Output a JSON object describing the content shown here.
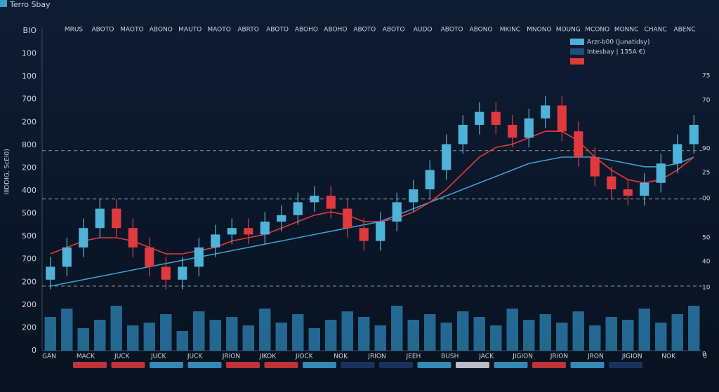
{
  "chart_data": {
    "type": "candlestick",
    "title": "Terro Sbay",
    "y_label": "IIIDDIG, ScEI0)",
    "left_axis_labels": [
      "BIO",
      "100",
      "100",
      "700",
      "200",
      "800",
      "200",
      "400",
      "500",
      "500",
      "700",
      "200",
      "200",
      "200",
      "0"
    ],
    "right_axis_labels": [
      "75",
      "70",
      "90",
      "25",
      "00",
      "50",
      "40",
      "10",
      "0"
    ],
    "top_labels": [
      "MRUS",
      "ABOTO",
      "MAOTO",
      "ABONO",
      "MAUTO",
      "MAOTO",
      "ABRTO",
      "ABOTO",
      "ABOHO",
      "ABOHO",
      "ABOTO",
      "ABOTO",
      "AUDO",
      "ABOTO",
      "ABONO",
      "MKINC",
      "MNONO",
      "MOUNG",
      "MCONO",
      "MONNC",
      "CHANC",
      "ABENC"
    ],
    "bottom_labels": [
      "GAN",
      "MACK",
      "JUCK",
      "JUCK",
      "JUCK",
      "JRION",
      "JIKOK",
      "JIOCK",
      "NOK",
      "JRION",
      "JEEH",
      "BUSH",
      "JACK",
      "JIGION",
      "JRION",
      "JRON",
      "JIGION",
      "NOK",
      "0"
    ],
    "legend": [
      {
        "name": "Arzr-b00 (Junatidsy)",
        "color": "#4fb3d9"
      },
      {
        "name": "Intesbay | 135A €)",
        "color": "#1f4f7a"
      },
      {
        "name": null,
        "color": "#e03a3e"
      }
    ],
    "ylim": [
      0,
      100
    ],
    "up_color": "#4fb3d9",
    "down_color": "#e03a3e",
    "open": [
      22,
      26,
      32,
      38,
      44,
      38,
      32,
      26,
      22,
      26,
      32,
      36,
      38,
      36,
      40,
      42,
      46,
      48,
      44,
      38,
      34,
      40,
      46,
      50,
      56,
      64,
      70,
      74,
      70,
      66,
      72,
      76,
      68,
      60,
      54,
      50,
      48,
      52,
      58,
      64
    ],
    "high": [
      29,
      35,
      41,
      47,
      47,
      41,
      35,
      29,
      29,
      35,
      39,
      41,
      41,
      43,
      45,
      49,
      51,
      51,
      47,
      41,
      43,
      49,
      53,
      59,
      67,
      73,
      77,
      77,
      73,
      75,
      79,
      79,
      71,
      63,
      57,
      53,
      55,
      61,
      67,
      73
    ],
    "low": [
      19,
      23,
      29,
      35,
      35,
      29,
      23,
      19,
      19,
      23,
      29,
      33,
      33,
      33,
      37,
      39,
      43,
      41,
      35,
      31,
      31,
      37,
      43,
      47,
      53,
      61,
      67,
      67,
      63,
      63,
      69,
      65,
      57,
      51,
      47,
      45,
      45,
      49,
      55,
      61
    ],
    "close": [
      26,
      32,
      38,
      44,
      38,
      32,
      26,
      22,
      26,
      32,
      36,
      38,
      36,
      40,
      42,
      46,
      48,
      44,
      38,
      34,
      40,
      46,
      50,
      56,
      64,
      70,
      74,
      70,
      66,
      72,
      76,
      68,
      60,
      54,
      50,
      48,
      52,
      58,
      64,
      70
    ],
    "series": [
      {
        "color": "#3aa0d0",
        "values": [
          20,
          21,
          22,
          23,
          24,
          25,
          26,
          27,
          28,
          29,
          30,
          31,
          32,
          33,
          34,
          35,
          36,
          37,
          38,
          39,
          40,
          42,
          44,
          46,
          48,
          50,
          52,
          54,
          56,
          58,
          59,
          60,
          60,
          60,
          59,
          58,
          57,
          57,
          58,
          60
        ]
      },
      {
        "color": "#e03a3e",
        "values": [
          30,
          32,
          34,
          35,
          35,
          34,
          32,
          30,
          30,
          31,
          32,
          34,
          35,
          36,
          38,
          40,
          42,
          43,
          42,
          40,
          40,
          41,
          43,
          46,
          50,
          55,
          60,
          63,
          64,
          66,
          68,
          68,
          65,
          60,
          56,
          53,
          52,
          53,
          56,
          60
        ]
      }
    ],
    "volume": [
      60,
      75,
      40,
      55,
      80,
      45,
      50,
      65,
      35,
      70,
      55,
      60,
      45,
      75,
      50,
      65,
      40,
      55,
      70,
      60,
      45,
      80,
      55,
      65,
      50,
      70,
      60,
      45,
      75,
      55,
      65,
      50,
      70,
      45,
      60,
      55,
      75,
      50,
      65,
      80
    ],
    "volume_color": "#2e86b8",
    "reference_lines": [
      62,
      47,
      20
    ]
  }
}
